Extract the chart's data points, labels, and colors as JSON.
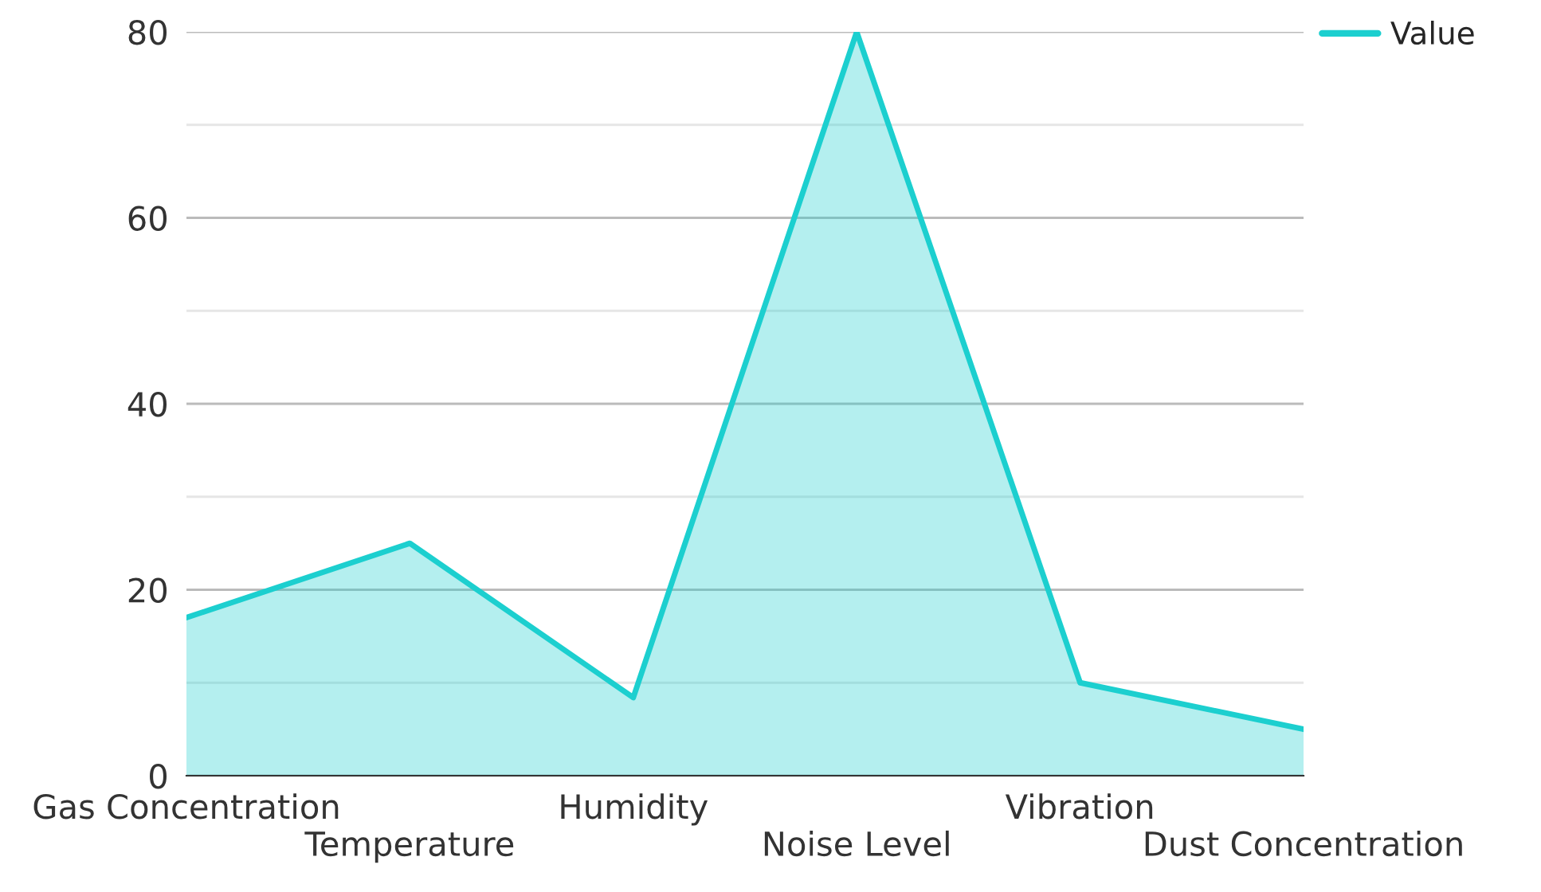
{
  "chart_data": {
    "type": "area",
    "categories": [
      "Gas Concentration",
      "Temperature",
      "Humidity",
      "Noise Level",
      "Vibration",
      "Dust Concentration"
    ],
    "series": [
      {
        "name": "Value",
        "color": "#1ccfcf",
        "values": [
          17,
          25,
          8.4,
          80,
          10,
          5
        ]
      }
    ],
    "ylim": [
      0,
      80
    ],
    "yticks": [
      0,
      {
        "value": 10,
        "label": null
      },
      20,
      {
        "value": 30,
        "label": null
      },
      40,
      {
        "value": 50,
        "label": null
      },
      60,
      {
        "value": 70,
        "label": null
      },
      80
    ],
    "grid": "y",
    "legend": "top right"
  }
}
